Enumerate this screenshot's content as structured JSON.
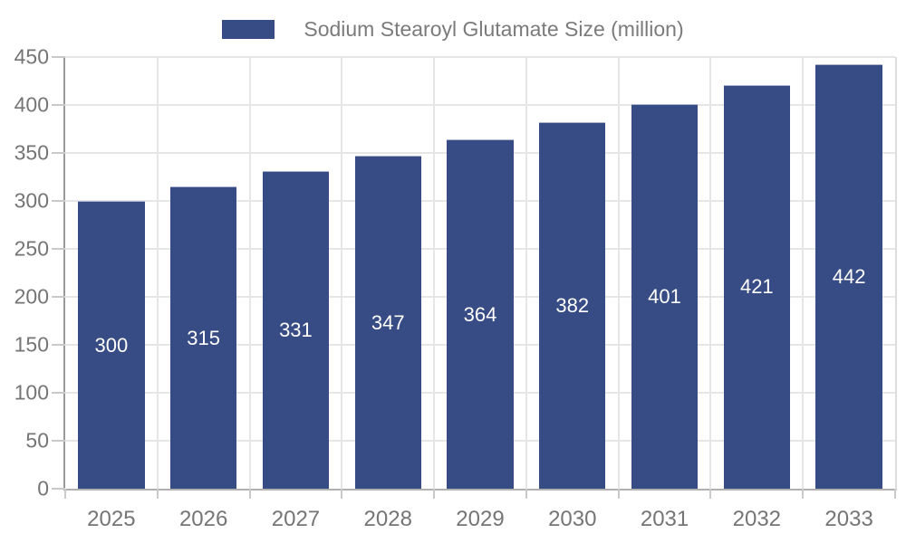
{
  "chart_data": {
    "type": "bar",
    "title": "Sodium Stearoyl Glutamate Size (million)",
    "legend_entries": [
      "Sodium Stearoyl Glutamate Size (million)"
    ],
    "legend_position": "top-center",
    "categories": [
      "2025",
      "2026",
      "2027",
      "2028",
      "2029",
      "2030",
      "2031",
      "2032",
      "2033"
    ],
    "values": [
      300,
      315,
      331,
      347,
      364,
      382,
      401,
      421,
      442
    ],
    "xlabel": "",
    "ylabel": "",
    "ylim": [
      0,
      450
    ],
    "ytick_step": 50,
    "yticks": [
      0,
      50,
      100,
      150,
      200,
      250,
      300,
      350,
      400,
      450
    ],
    "grid": true,
    "value_labels_shown": true,
    "colors": {
      "bar": "#374B84",
      "bar_border": "#aab3cf",
      "grid": "#e6e6e6",
      "axis_line_left": "#999999",
      "axis_line_bottom": "#b0b0b0",
      "plot_right_border": "#dddddd",
      "tick": "#c9c9c9",
      "axis_text": "#757575",
      "legend_text": "#7b7b7b",
      "value_label": "#ffffff",
      "background": "#ffffff"
    }
  }
}
